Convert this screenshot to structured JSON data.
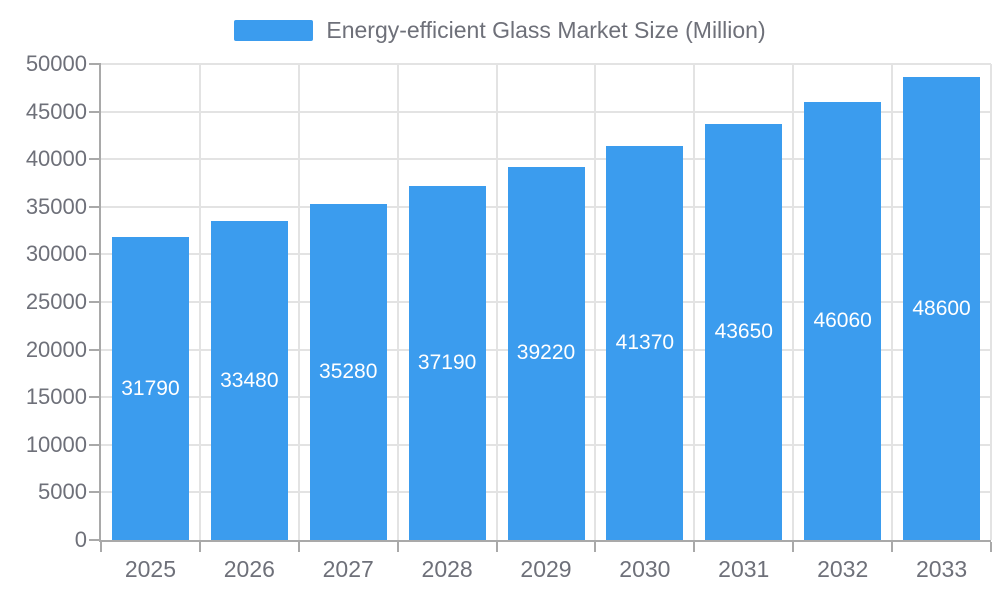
{
  "chart_data": {
    "type": "bar",
    "title": "",
    "legend": {
      "label": "Energy-efficient Glass Market Size (Million)",
      "position": "top"
    },
    "categories": [
      "2025",
      "2026",
      "2027",
      "2028",
      "2029",
      "2030",
      "2031",
      "2032",
      "2033"
    ],
    "series": [
      {
        "name": "Energy-efficient Glass Market Size (Million)",
        "values": [
          31790,
          33480,
          35280,
          37190,
          39220,
          41370,
          43650,
          46060,
          48600
        ]
      }
    ],
    "bar_value_labels": [
      "31790",
      "33480",
      "35280",
      "37190",
      "39220",
      "41370",
      "43650",
      "46060",
      "48600"
    ],
    "xlabel": "",
    "ylabel": "",
    "ylim": [
      0,
      50000
    ],
    "yticks": [
      0,
      5000,
      10000,
      15000,
      20000,
      25000,
      30000,
      35000,
      40000,
      45000,
      50000
    ],
    "grid": "horizontal and vertical light gridlines",
    "value_label_position": "inside-center"
  },
  "colors": {
    "bar": "#3b9cee",
    "bar_label_text": "#ffffff",
    "axis_text": "#6e7079",
    "legend_text": "#6e7079",
    "axis_line": "#a9a9a9",
    "gridline": "#e3e3e3",
    "background": "#ffffff"
  }
}
